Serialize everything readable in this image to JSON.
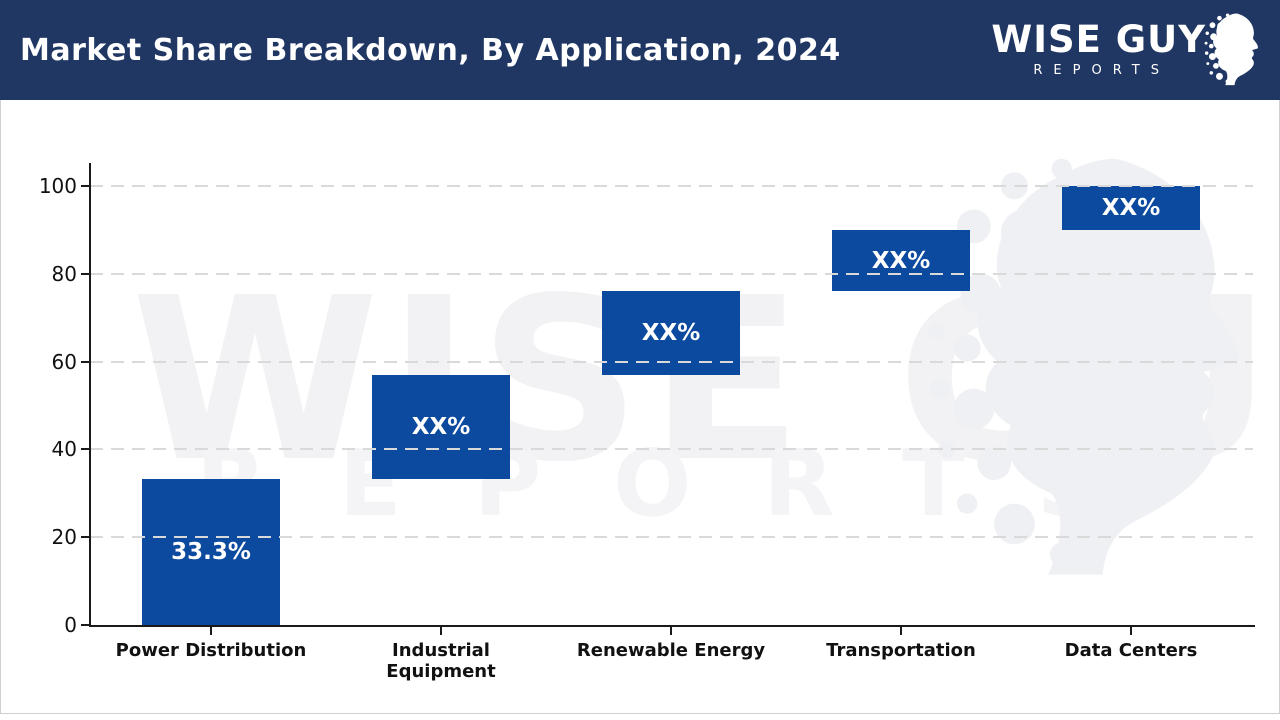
{
  "header": {
    "title": "Market Share Breakdown, By Application, 2024",
    "logo": {
      "name": "WISE GUY",
      "tagline": "REPORTS"
    }
  },
  "watermark": {
    "line1": "WISE GUY",
    "line2": "REPORTS"
  },
  "colors": {
    "header_bg": "#203764",
    "bar": "#0b4a9e",
    "grid": "#d9d9d9",
    "axis": "#1a1a1a",
    "bar_label": "#ffffff",
    "watermark": "#f2f2f5"
  },
  "chart_data": {
    "type": "bar",
    "subtype": "waterfall",
    "title": "Market Share Breakdown, By Application, 2024",
    "xlabel": "",
    "ylabel": "",
    "ylim": [
      0,
      105
    ],
    "yticks": [
      0,
      20,
      40,
      60,
      80,
      100
    ],
    "grid": "horizontal-dashed",
    "legend": "none",
    "categories": [
      "Power Distribution",
      "Industrial Equipment",
      "Renewable Energy",
      "Transportation",
      "Data Centers"
    ],
    "segments": [
      {
        "category": "Power Distribution",
        "start": 0,
        "end": 33.3,
        "label": "33.3%"
      },
      {
        "category": "Industrial Equipment",
        "display": "Industrial\nEquipment",
        "start": 33.3,
        "end": 57,
        "label": "XX%"
      },
      {
        "category": "Renewable Energy",
        "start": 57,
        "end": 76,
        "label": "XX%"
      },
      {
        "category": "Transportation",
        "start": 76,
        "end": 90,
        "label": "XX%"
      },
      {
        "category": "Data Centers",
        "start": 90,
        "end": 100,
        "label": "XX%"
      }
    ]
  }
}
